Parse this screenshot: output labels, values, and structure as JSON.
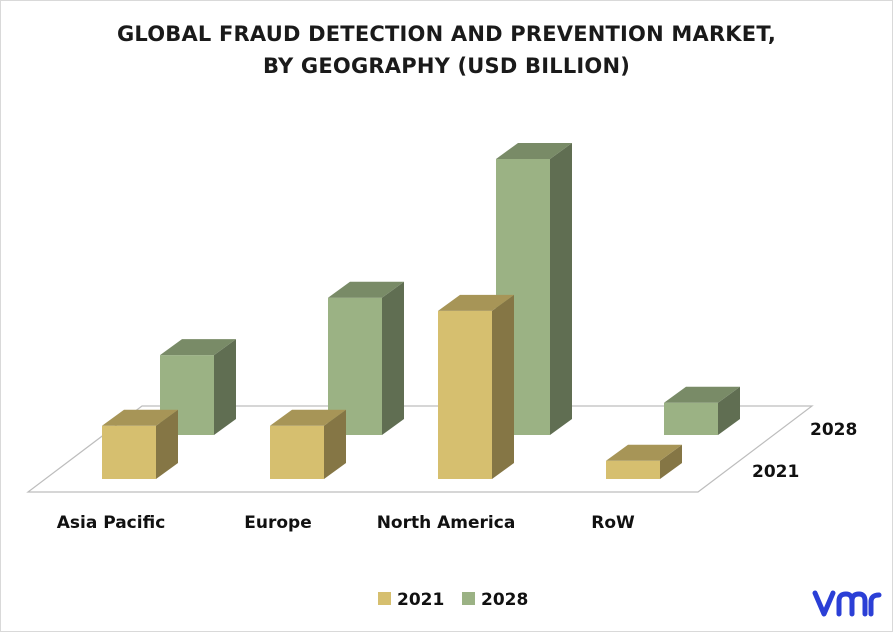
{
  "title": {
    "line1": "GLOBAL FRAUD DETECTION AND PREVENTION MARKET,",
    "line2": "BY GEOGRAPHY (USD BILLION)"
  },
  "logo": {
    "name": "vmr-logo",
    "text": "vmr",
    "color": "#2b3fd6"
  },
  "chart_data": {
    "type": "bar",
    "variant": "3d-column-depth",
    "categories": [
      "Asia Pacific",
      "Europe",
      "North America",
      "RoW"
    ],
    "series": [
      {
        "name": "2021",
        "values": [
          3.8,
          3.8,
          12.0,
          1.3
        ],
        "color": "#d6bf6f"
      },
      {
        "name": "2028",
        "values": [
          5.7,
          9.8,
          19.7,
          2.3
        ],
        "color": "#9bb284"
      }
    ],
    "depth_labels": [
      "2028",
      "2021"
    ],
    "legend": {
      "position": "bottom",
      "entries": [
        "2021",
        "2028"
      ]
    },
    "ylim": [
      0,
      20
    ],
    "grid": false,
    "value_axis_shown": false
  }
}
